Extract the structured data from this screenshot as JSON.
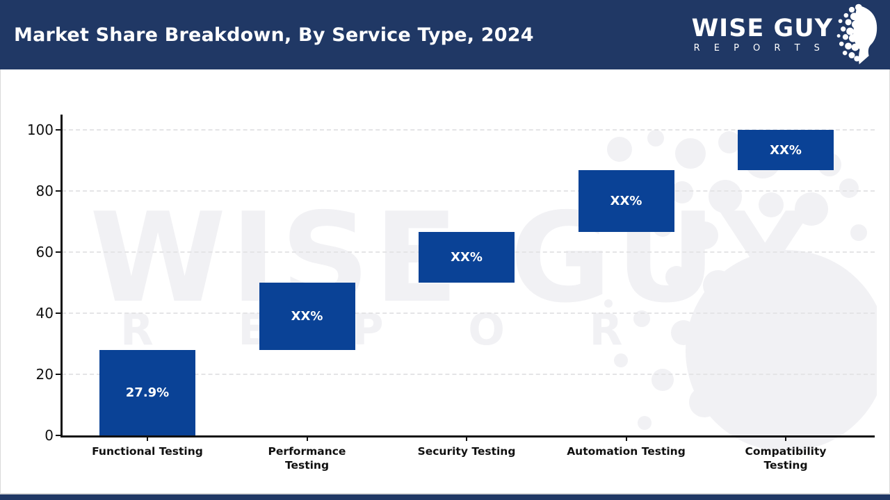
{
  "header": {
    "bg_color": "#203865",
    "title": "Market Share Breakdown, By Service Type, 2024",
    "logo": {
      "name": "WISE GUY",
      "sub": "R E P O R T S"
    }
  },
  "watermark": {
    "line1": "WISE GUY",
    "line2": "R E P O R T S"
  },
  "chart_data": {
    "type": "bar",
    "subtype": "waterfall",
    "title": "Market Share Breakdown, By Service Type, 2024",
    "categories": [
      "Functional Testing",
      "Performance Testing",
      "Security Testing",
      "Automation Testing",
      "Compatibility Testing"
    ],
    "segments": [
      {
        "category": "Functional Testing",
        "start": 0,
        "end": 27.9,
        "value_label": "27.9%",
        "label_lines": [
          "Functional Testing"
        ]
      },
      {
        "category": "Performance Testing",
        "start": 27.9,
        "end": 50.0,
        "value_label": "XX%",
        "label_lines": [
          "Performance",
          "Testing"
        ]
      },
      {
        "category": "Security Testing",
        "start": 50.0,
        "end": 66.6,
        "value_label": "XX%",
        "label_lines": [
          "Security Testing"
        ]
      },
      {
        "category": "Automation Testing",
        "start": 66.6,
        "end": 86.8,
        "value_label": "XX%",
        "label_lines": [
          "Automation Testing"
        ]
      },
      {
        "category": "Compatibility Testing",
        "start": 86.8,
        "end": 100.0,
        "value_label": "XX%",
        "label_lines": [
          "Compatibility",
          "Testing"
        ]
      }
    ],
    "y_ticks": [
      0,
      20,
      40,
      60,
      80,
      100
    ],
    "ylim": [
      0,
      105
    ],
    "bar_color": "#0a4296",
    "bar_label_color": "#ffffff",
    "axis_color": "#111111",
    "grid_color": "#e4e4e6",
    "grid_style": "dashed-horizontal",
    "legend": "none"
  }
}
